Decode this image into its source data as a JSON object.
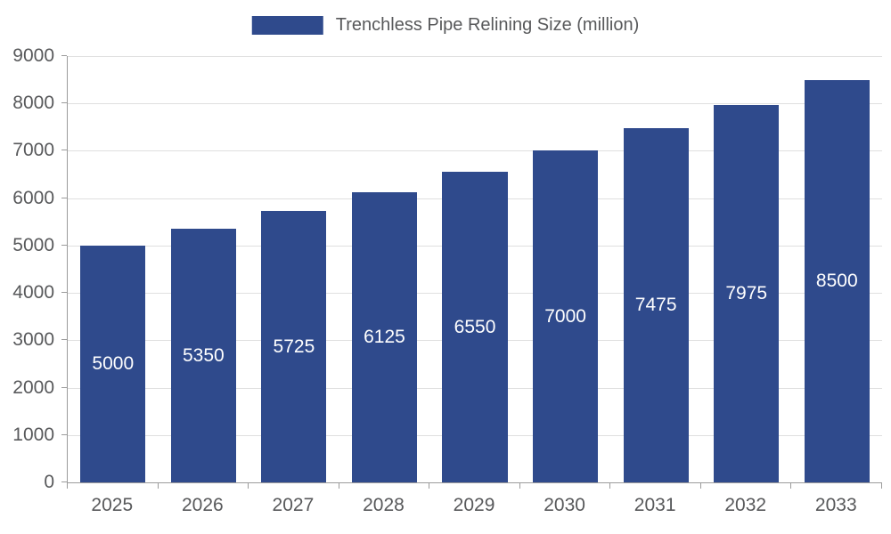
{
  "legend": {
    "label": "Trenchless Pipe Relining Size (million)",
    "swatch_color": "#2F4A8C"
  },
  "chart_data": {
    "type": "bar",
    "title": "Trenchless Pipe Relining Size (million)",
    "categories": [
      "2025",
      "2026",
      "2027",
      "2028",
      "2029",
      "2030",
      "2031",
      "2032",
      "2033"
    ],
    "values": [
      5000,
      5350,
      5725,
      6125,
      6550,
      7000,
      7475,
      7975,
      8500
    ],
    "value_labels": [
      "5000",
      "5350",
      "5725",
      "6125",
      "6550",
      "7000",
      "7475",
      "7975",
      "8500"
    ],
    "xlabel": "",
    "ylabel": "",
    "ylim": [
      0,
      9000
    ],
    "yticks": [
      0,
      1000,
      2000,
      3000,
      4000,
      5000,
      6000,
      7000,
      8000,
      9000
    ],
    "grid": true,
    "legend_position": "top-center",
    "bar_color": "#2F4A8C",
    "value_label_color": "#ffffff",
    "gridline_color": "#e0e0e0",
    "axis_color": "#9b9b9b",
    "tick_label_color": "#58595b"
  }
}
